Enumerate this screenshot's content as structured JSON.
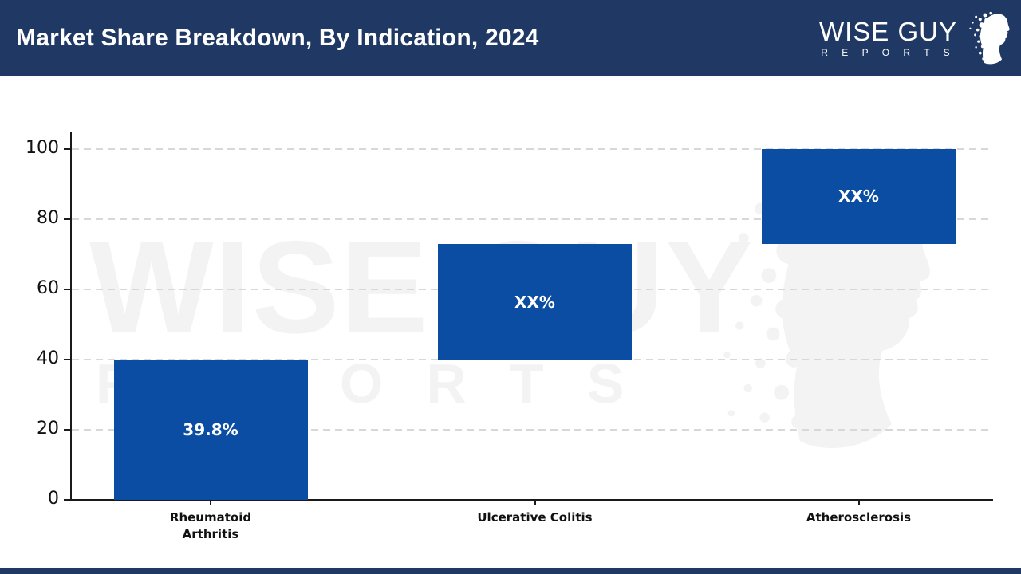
{
  "header": {
    "title": "Market Share Breakdown, By Indication, 2024",
    "logo": {
      "line1": "WISE GUY",
      "line2": "R E P O R T S"
    }
  },
  "watermark": {
    "line1": "WISE GUY",
    "line2": "REPORTS"
  },
  "colors": {
    "header_navy": "#1f3864",
    "bar_blue": "#0b4da2",
    "grid_gray": "#d8d8d8",
    "watermark_gray": "#f3f3f3"
  },
  "chart_data": {
    "type": "bar",
    "variant": "waterfall",
    "title": "Market Share Breakdown, By Indication, 2024",
    "categories": [
      "Rheumatoid\nArthritis",
      "Ulcerative Colitis",
      "Atherosclerosis"
    ],
    "bars": [
      {
        "category": "Rheumatoid Arthritis",
        "start": 0,
        "end": 39.8,
        "label": "39.8%"
      },
      {
        "category": "Ulcerative Colitis",
        "start": 39.8,
        "end": 73,
        "label": "XX%"
      },
      {
        "category": "Atherosclerosis",
        "start": 73,
        "end": 100,
        "label": "XX%"
      }
    ],
    "xlabel": "",
    "ylabel": "",
    "ylim": [
      0,
      105
    ],
    "yticks": [
      0,
      20,
      40,
      60,
      80,
      100
    ],
    "grid": "horizontal-dashed",
    "legend": "none",
    "bar_color": "#0b4da2",
    "bar_label_color": "#ffffff"
  }
}
